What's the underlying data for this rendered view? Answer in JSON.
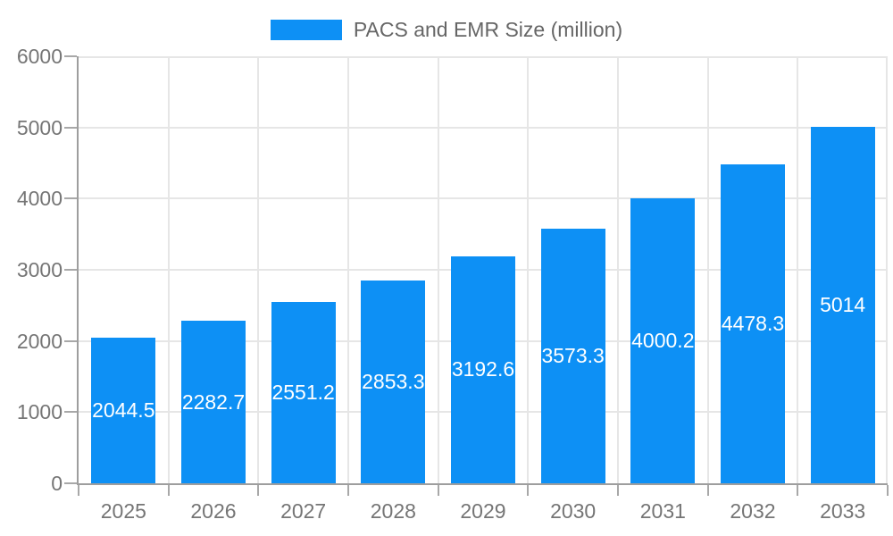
{
  "legend": {
    "label": "PACS and EMR Size (million)"
  },
  "chart_data": {
    "type": "bar",
    "title": "PACS and EMR Size (million)",
    "categories": [
      "2025",
      "2026",
      "2027",
      "2028",
      "2029",
      "2030",
      "2031",
      "2032",
      "2033"
    ],
    "values": [
      2044.5,
      2282.7,
      2551.2,
      2853.3,
      3192.6,
      3573.3,
      4000.2,
      4478.3,
      5014
    ],
    "value_labels": [
      "2044.5",
      "2282.7",
      "2551.2",
      "2853.3",
      "3192.6",
      "3573.3",
      "4000.2",
      "4478.3",
      "5014"
    ],
    "xlabel": "",
    "ylabel": "",
    "ylim": [
      0,
      6000
    ],
    "yticks": [
      0,
      1000,
      2000,
      3000,
      4000,
      5000,
      6000
    ],
    "grid": true,
    "legend_position": "top",
    "bar_color": "#0d90f5",
    "value_label_color": "#ffffff"
  },
  "colors": {
    "bar": "#0d90f5",
    "axis_line": "#9e9e9e",
    "gridline": "#e6e6e6",
    "tick_mark": "#a8a8a8",
    "tick_label": "#757575",
    "legend_text": "#666666",
    "background": "#ffffff"
  }
}
